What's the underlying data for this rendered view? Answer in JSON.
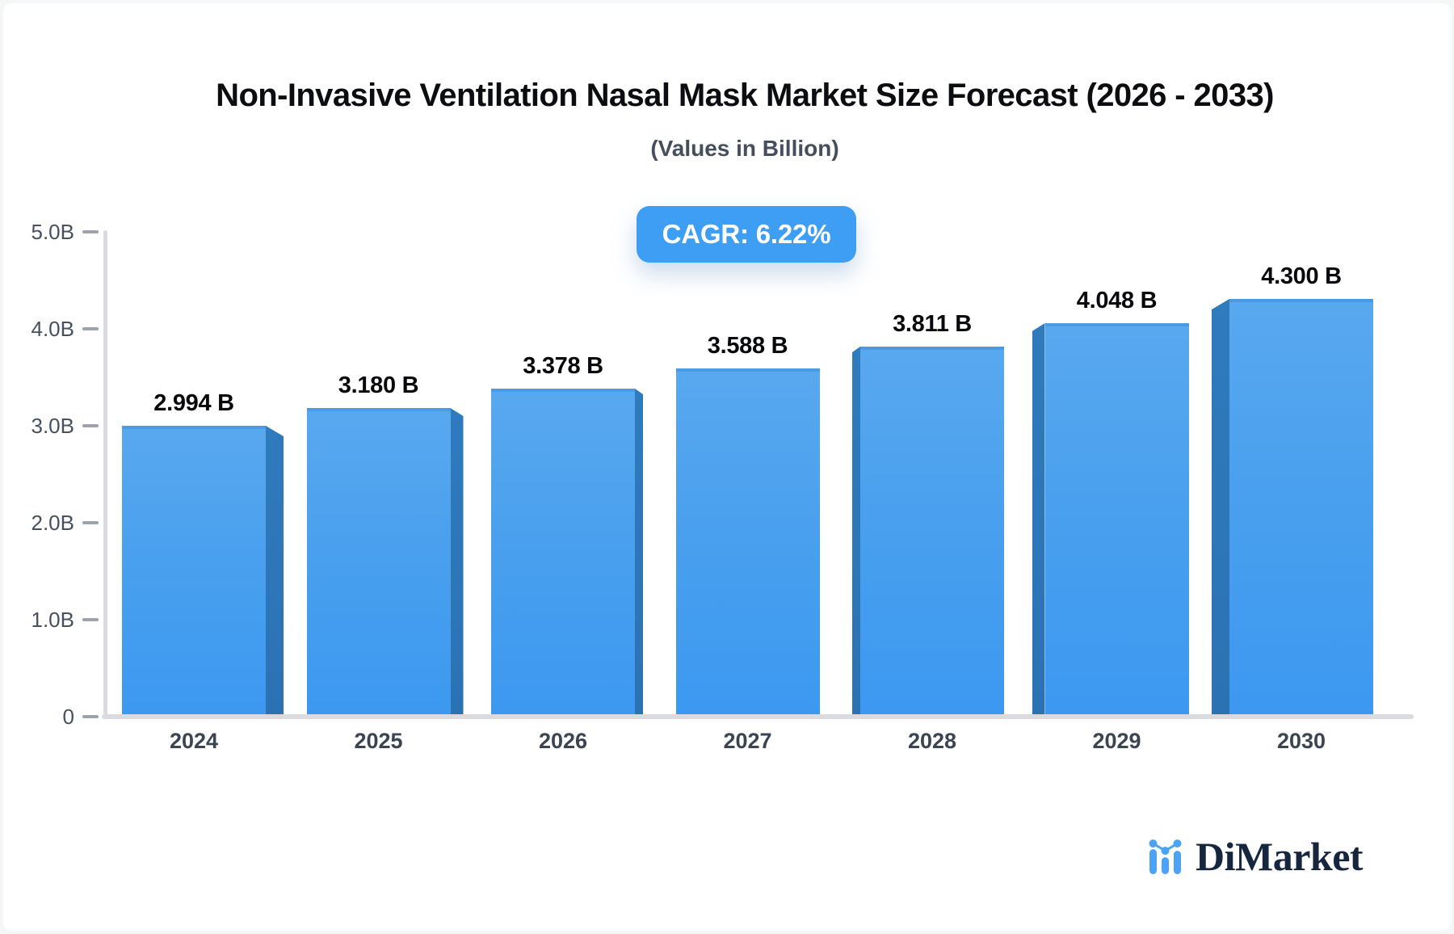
{
  "header": {
    "title": "Non-Invasive Ventilation Nasal Mask Market Size Forecast (2026 - 2033)",
    "subtitle": "(Values in Billion)",
    "cagr_badge": "CAGR: 6.22%"
  },
  "chart_data": {
    "type": "bar",
    "title": "Non-Invasive Ventilation Nasal Mask Market Size Forecast (2026 - 2033)",
    "subtitle": "(Values in Billion)",
    "categories": [
      "2024",
      "2025",
      "2026",
      "2027",
      "2028",
      "2029",
      "2030"
    ],
    "values": [
      2.994,
      3.18,
      3.378,
      3.588,
      3.811,
      4.048,
      4.3
    ],
    "value_labels": [
      "2.994 B",
      "3.180 B",
      "3.378 B",
      "3.588 B",
      "3.811 B",
      "4.048 B",
      "4.300 B"
    ],
    "unit": "Billion",
    "cagr": "6.22%",
    "xlabel": "",
    "ylabel": "",
    "ylim": [
      0,
      5
    ],
    "y_tick_labels_top_to_bottom": [
      "5.0B",
      "4.0B",
      "3.0B",
      "2.0B",
      "1.0B",
      "0"
    ],
    "grid": false,
    "legend": "none",
    "bar_style": "3d-perspective, extrusion faces toward center bar"
  },
  "colors": {
    "bar_face_top": "#58a8ef",
    "bar_face_bottom": "#3c98f0",
    "bar_side": "#2b72b3",
    "badge_bg": "#3d9ef3",
    "axis_line": "#d9dbdf",
    "tick_dash": "#9ba3ae",
    "title_text": "#0c0d10",
    "logo_navy": "#17263f",
    "logo_blue": "#4ba3f6"
  },
  "logo": {
    "text": "DiMarket",
    "icon": "bar-line-chart-icon"
  }
}
